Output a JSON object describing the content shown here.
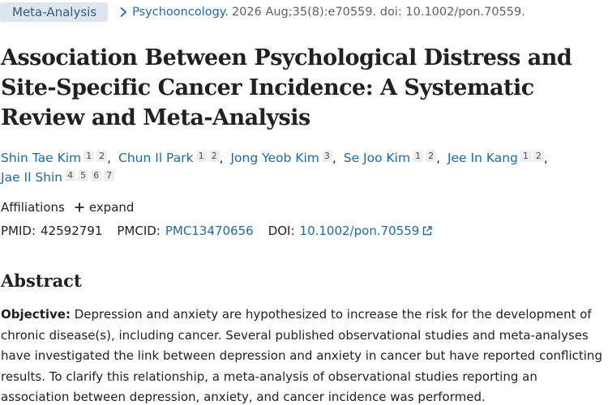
{
  "badge": "Meta-Analysis",
  "journal": {
    "name": "Psychooncology.",
    "citation": "2026 Aug;35(8):e70559. doi: 10.1002/pon.70559."
  },
  "title": "Association Between Psychological Distress and Site-Specific Cancer Incidence: A Systematic Review and Meta-Analysis",
  "authors": [
    {
      "name": "Shin Tae Kim",
      "sups": [
        "1",
        "2"
      ]
    },
    {
      "name": "Chun Il Park",
      "sups": [
        "1",
        "2"
      ]
    },
    {
      "name": "Jong Yeob Kim",
      "sups": [
        "3"
      ]
    },
    {
      "name": "Se Joo Kim",
      "sups": [
        "1",
        "2"
      ]
    },
    {
      "name": "Jee In Kang",
      "sups": [
        "1",
        "2"
      ]
    },
    {
      "name": "Jae Il Shin",
      "sups": [
        "4",
        "5",
        "6",
        "7"
      ]
    }
  ],
  "affiliations": {
    "label": "Affiliations",
    "expand": "expand"
  },
  "ids": {
    "pmid_label": "PMID:",
    "pmid": "42592791",
    "pmcid_label": "PMCID:",
    "pmcid": "PMC13470656",
    "doi_label": "DOI:",
    "doi": "10.1002/pon.70559"
  },
  "abstract": {
    "heading": "Abstract",
    "objective_label": "Objective:",
    "objective_text": "Depression and anxiety are hypothesized to increase the risk for the development of chronic disease(s), including cancer. Several published observational studies and meta-analyses have investigated the link between depression and anxiety in cancer but have reported conflicting results. To clarify this relationship, a meta-analysis of observational studies reporting an association between depression, anxiety, and cancer incidence was performed."
  },
  "colors": {
    "link": "#1a6aaa",
    "badge_bg": "#dfe5ec",
    "badge_text": "#2f5d8a"
  }
}
